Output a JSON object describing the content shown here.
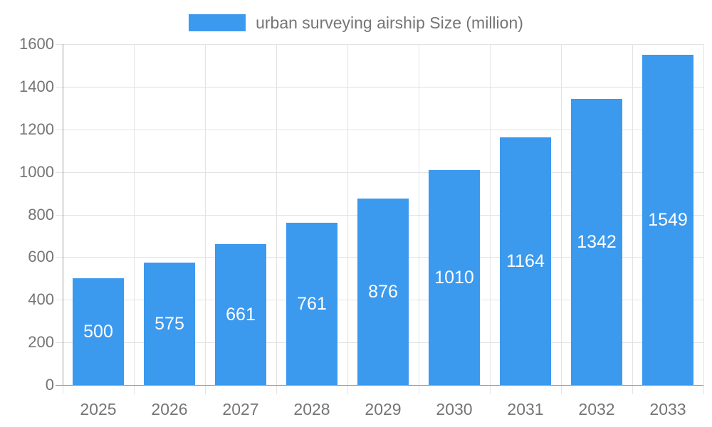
{
  "chart_data": {
    "type": "bar",
    "legend": "urban surveying airship Size (million)",
    "series_name": "urban surveying airship Size (million)",
    "categories": [
      "2025",
      "2026",
      "2027",
      "2028",
      "2029",
      "2030",
      "2031",
      "2032",
      "2033"
    ],
    "values": [
      500,
      575,
      661,
      761,
      876,
      1010,
      1164,
      1342,
      1549
    ],
    "ylim": [
      0,
      1600
    ],
    "ytick_step": 200,
    "ytick_labels": [
      "0",
      "200",
      "400",
      "600",
      "800",
      "1000",
      "1200",
      "1400",
      "1600"
    ],
    "grid": true,
    "legend_position": "top-center",
    "value_labels": "inside-center",
    "colors": {
      "bar": "#3b99ee",
      "value_label": "#ffffff",
      "axis_text": "#757575",
      "grid_line": "#e3e3e3",
      "axis_line": "#9e9e9e",
      "background": "#ffffff"
    }
  }
}
